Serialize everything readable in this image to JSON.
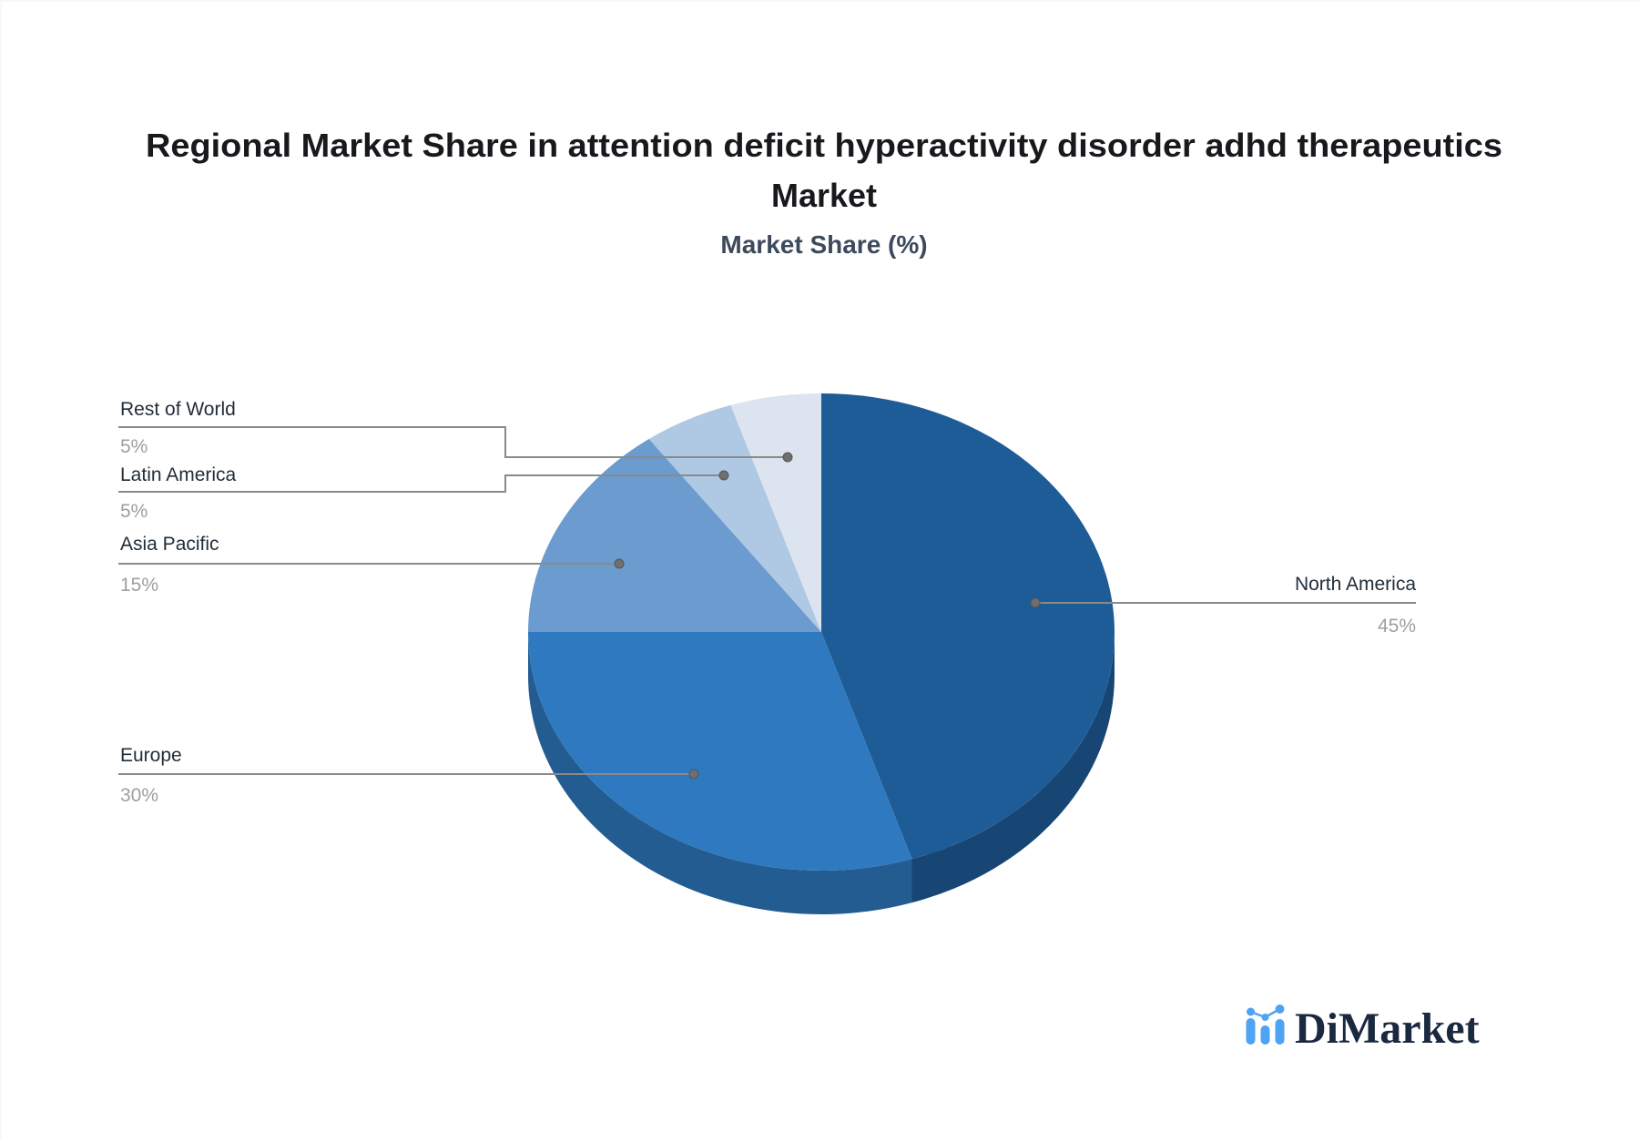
{
  "title": {
    "line1": "Regional Market Share in attention deficit hyperactivity disorder adhd therapeutics",
    "line2": "Market",
    "subtitle": "Market Share (%)"
  },
  "chart_data": {
    "type": "pie",
    "title": "Regional Market Share in attention deficit hyperactivity disorder adhd therapeutics Market",
    "subtitle": "Market Share (%)",
    "unit": "%",
    "style": "3d-pie",
    "start_angle_deg": 90,
    "direction": "clockwise",
    "legend_position": "callout-labels",
    "slices": [
      {
        "label": "North America",
        "value": 45,
        "color": "#1E5C98"
      },
      {
        "label": "Europe",
        "value": 30,
        "color": "#2E79BF"
      },
      {
        "label": "Asia Pacific",
        "value": 15,
        "color": "#6B9BCF"
      },
      {
        "label": "Latin America",
        "value": 5,
        "color": "#AFC9E5"
      },
      {
        "label": "Rest of World",
        "value": 5,
        "color": "#DCE4EF"
      }
    ]
  },
  "colors": {
    "title": "#17191C",
    "subtitle": "#3D4A5C",
    "slice_label": "#222E39",
    "slice_value": "#9B9FA3",
    "leader_line": "#8A8A8A",
    "leader_dot": "#6F6F6F",
    "leader_dot_ring": "#565656",
    "background": "#FFFFFF",
    "logo_accent": "#4FA3F3",
    "logo_text_color": "#1A2840"
  },
  "branding": {
    "logo_text": "DiMarket",
    "logo_icon": "bar-sparkline-icon"
  }
}
